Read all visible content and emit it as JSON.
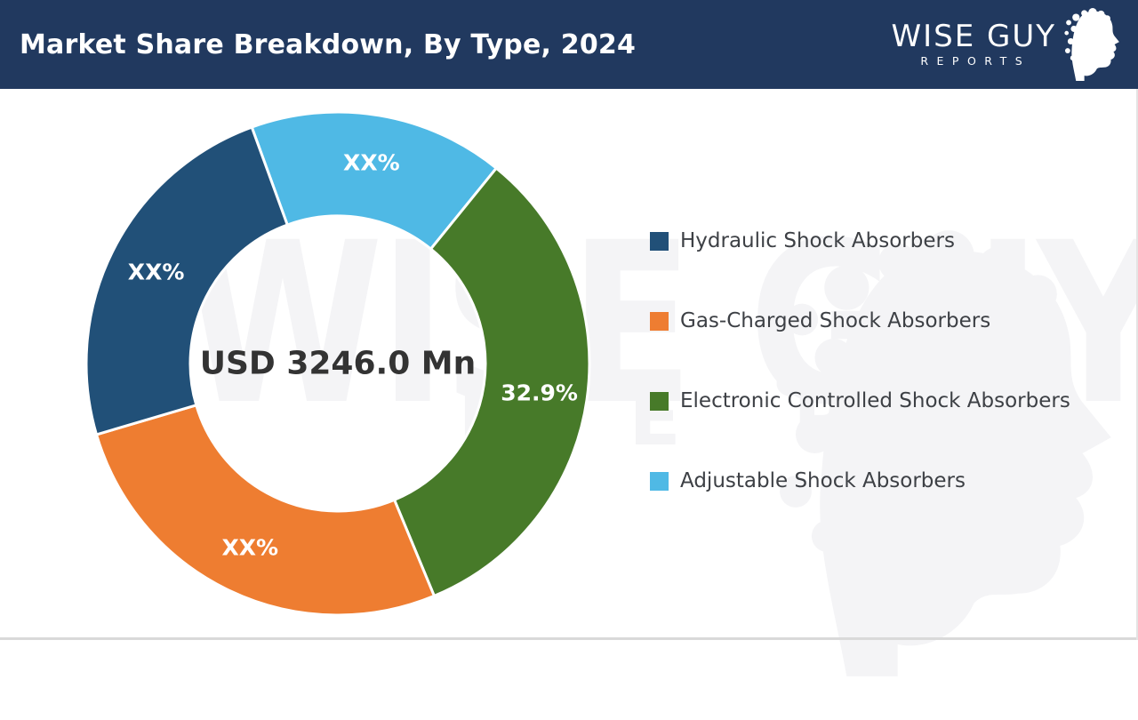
{
  "header": {
    "title": "Market Share Breakdown, By Type, 2024",
    "logo": {
      "line1": "WISE GUY",
      "line2": "REPORTS"
    }
  },
  "watermark": {
    "line1": "WISE GUY",
    "line2": "R E P O R T S"
  },
  "chart_data": {
    "type": "pie",
    "subtype": "donut",
    "title": "Market Share Breakdown, By Type, 2024",
    "center_label": "USD 3246.0 Mn",
    "start_angle_deg": -20,
    "direction": "clockwise",
    "legend_position": "right",
    "segments": [
      {
        "name": "Adjustable Shock Absorbers",
        "value_pct": 16.4,
        "display_label": "XX%",
        "color": "#4FB9E5"
      },
      {
        "name": "Electronic Controlled Shock Absorbers",
        "value_pct": 32.9,
        "display_label": "32.9%",
        "color": "#477A29"
      },
      {
        "name": "Gas-Charged Shock Absorbers",
        "value_pct": 26.7,
        "display_label": "XX%",
        "color": "#EE7D31"
      },
      {
        "name": "Hydraulic Shock Absorbers",
        "value_pct": 24.0,
        "display_label": "XX%",
        "color": "#215078"
      }
    ],
    "legend": [
      {
        "label": "Hydraulic Shock Absorbers",
        "color": "#215078"
      },
      {
        "label": "Gas-Charged Shock Absorbers",
        "color": "#EE7D31"
      },
      {
        "label": "Electronic Controlled Shock Absorbers",
        "color": "#477A29"
      },
      {
        "label": "Adjustable Shock Absorbers",
        "color": "#4FB9E5"
      }
    ],
    "colors": {
      "header_bg": "#21395F",
      "segment_divider": "#FFFFFF",
      "center_text": "#333333",
      "legend_text": "#3D4045",
      "watermark": "#F4F4F6"
    }
  }
}
